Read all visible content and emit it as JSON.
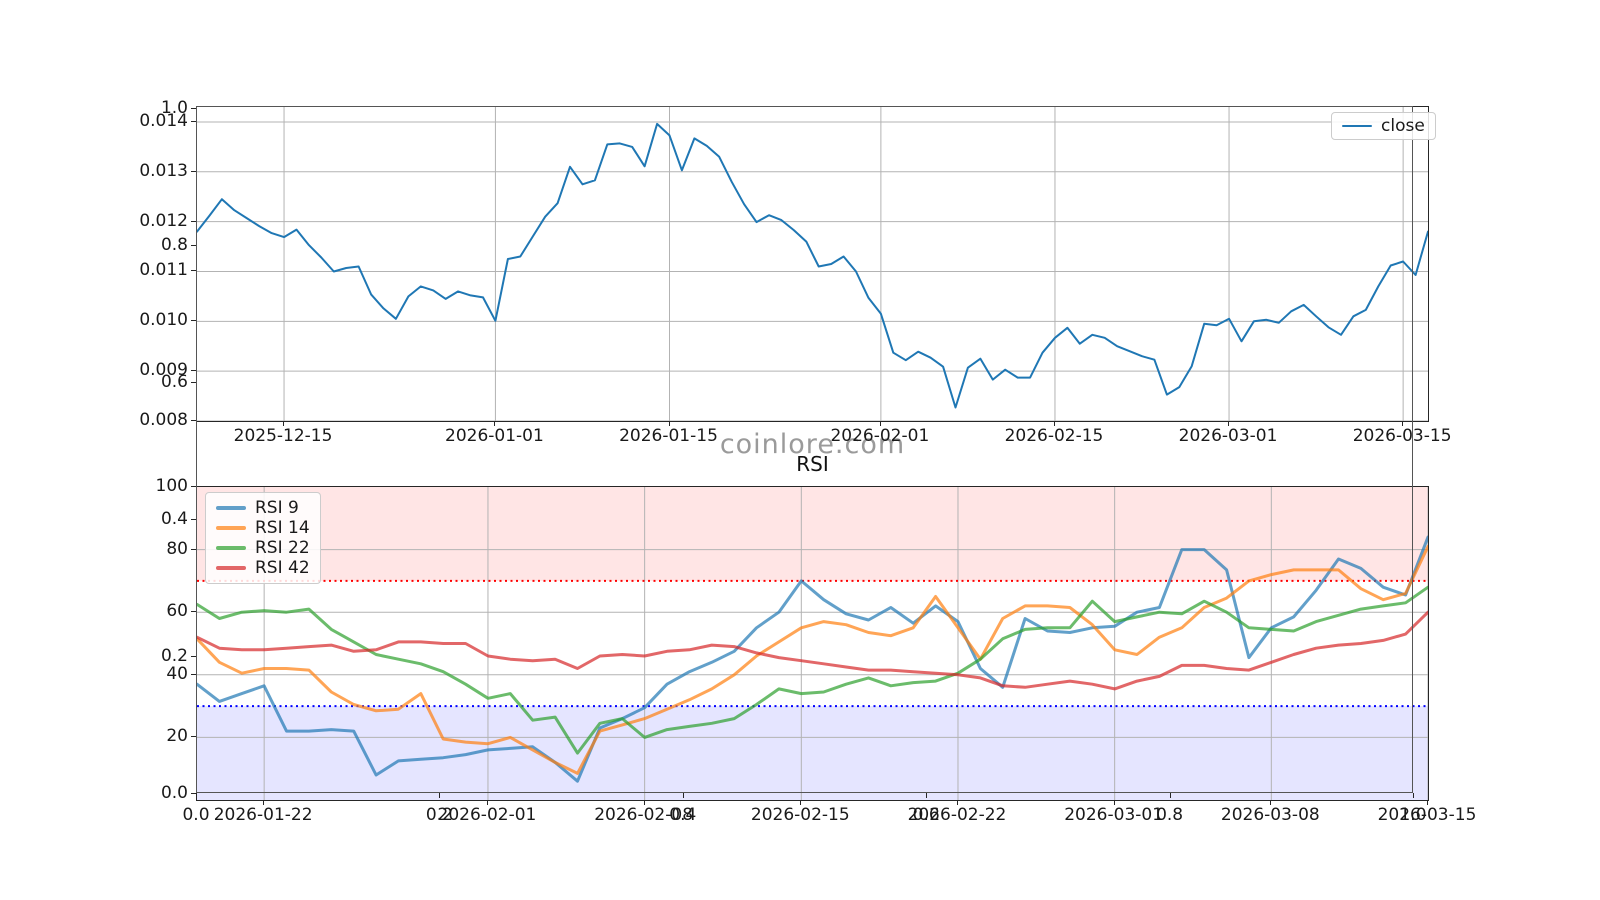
{
  "watermark": "coinlore.com",
  "price_panel": {
    "legend": [
      {
        "label": "close",
        "color": "#1f77b4"
      }
    ],
    "y_tick_labels": [
      "0.014",
      "0.013",
      "0.012",
      "0.011",
      "0.010",
      "0.009",
      "0.008"
    ],
    "y_tick_values": [
      0.014,
      0.013,
      0.012,
      0.011,
      0.01,
      0.009,
      0.008
    ],
    "x_ticks": [
      {
        "label": "2025-12-15",
        "index": 7
      },
      {
        "label": "2026-01-01",
        "index": 24
      },
      {
        "label": "2026-01-15",
        "index": 38
      },
      {
        "label": "2026-02-01",
        "index": 55
      },
      {
        "label": "2026-02-15",
        "index": 69
      },
      {
        "label": "2026-03-01",
        "index": 83
      },
      {
        "label": "2026-03-15",
        "index": 97
      }
    ]
  },
  "rsi_panel": {
    "title": "RSI",
    "legend": [
      {
        "label": "RSI 9",
        "color": "#1f77b4"
      },
      {
        "label": "RSI 14",
        "color": "#ff7f0e"
      },
      {
        "label": "RSI 22",
        "color": "#2ca02c"
      },
      {
        "label": "RSI 42",
        "color": "#d62728"
      }
    ],
    "y_tick_labels": [
      "100",
      "80",
      "60",
      "40",
      "20"
    ],
    "y_tick_values": [
      100,
      80,
      60,
      40,
      20
    ],
    "x_ticks": [
      {
        "label": "2026-01-22",
        "index": 3
      },
      {
        "label": "2026-02-01",
        "index": 13
      },
      {
        "label": "2026-02-08",
        "index": 20
      },
      {
        "label": "2026-02-15",
        "index": 27
      },
      {
        "label": "2026-02-22",
        "index": 34
      },
      {
        "label": "2026-03-01",
        "index": 41
      },
      {
        "label": "2026-03-08",
        "index": 48
      },
      {
        "label": "2026-03-15",
        "index": 55
      }
    ],
    "overbought_level": 70,
    "oversold_level": 30,
    "band_colors": {
      "overbought": "rgba(255,0,0,0.10)",
      "oversold": "rgba(0,0,255,0.10)"
    },
    "threshold_colors": {
      "overbought": "#ff0000",
      "oversold": "#0000ff"
    }
  },
  "overlay_axis": {
    "left_labels": [
      "1.0",
      "0.8",
      "0.6",
      "0.4",
      "0.2",
      "0.0"
    ],
    "bottom_labels": [
      "0.0",
      "0.2",
      "0.4",
      "0.6",
      "0.8",
      "1.0"
    ]
  },
  "chart_data": [
    {
      "type": "line",
      "title": "",
      "legend_position": "upper right",
      "xlabel": "",
      "ylabel": "",
      "ylim": [
        0.008,
        0.0143
      ],
      "grid": true,
      "start_date": "2025-12-08",
      "frequency": "daily",
      "series": [
        {
          "name": "close",
          "color": "#1f77b4",
          "values": [
            0.0118,
            0.01212,
            0.01245,
            0.01223,
            0.01207,
            0.01191,
            0.01177,
            0.01169,
            0.01184,
            0.01153,
            0.01128,
            0.011,
            0.01107,
            0.0111,
            0.01054,
            0.01026,
            0.01005,
            0.0105,
            0.0107,
            0.01062,
            0.01045,
            0.0106,
            0.01052,
            0.01048,
            0.01001,
            0.01125,
            0.0113,
            0.0117,
            0.0121,
            0.01237,
            0.0131,
            0.01275,
            0.01283,
            0.01355,
            0.01357,
            0.0135,
            0.01311,
            0.01396,
            0.01373,
            0.01303,
            0.01367,
            0.01352,
            0.0133,
            0.0128,
            0.01235,
            0.01199,
            0.01213,
            0.01203,
            0.01183,
            0.0116,
            0.0111,
            0.01115,
            0.0113,
            0.011,
            0.01047,
            0.01015,
            0.00937,
            0.00922,
            0.00939,
            0.00927,
            0.00909,
            0.00827,
            0.00907,
            0.00925,
            0.00883,
            0.00903,
            0.00887,
            0.00887,
            0.00937,
            0.00967,
            0.00987,
            0.00955,
            0.00973,
            0.00967,
            0.0095,
            0.0094,
            0.0093,
            0.00923,
            0.00853,
            0.00868,
            0.0091,
            0.00995,
            0.00992,
            0.01005,
            0.0096,
            0.01,
            0.01003,
            0.00997,
            0.0102,
            0.01033,
            0.0101,
            0.00988,
            0.00973,
            0.0101,
            0.01023,
            0.0107,
            0.01112,
            0.0112,
            0.01093,
            0.0118
          ]
        }
      ]
    },
    {
      "type": "line",
      "title": "RSI",
      "legend_position": "upper left",
      "ylim": [
        0,
        100
      ],
      "grid": true,
      "start_date": "2026-01-19",
      "frequency": "daily",
      "overbought_level": 70,
      "oversold_level": 30,
      "series": [
        {
          "name": "RSI 9",
          "color": "#1f77b4",
          "values": [
            37,
            31.5,
            34,
            36.5,
            22,
            22,
            22.5,
            22,
            8,
            12.5,
            13,
            13.5,
            14.5,
            16,
            16.5,
            17,
            12,
            6,
            23,
            26,
            29.5,
            37,
            41,
            44,
            47.5,
            55,
            60,
            70,
            64,
            59.5,
            57.5,
            61.5,
            56.5,
            62,
            57,
            42,
            36,
            58,
            54,
            53.5,
            55,
            55.5,
            60,
            61.5,
            80,
            80,
            73.5,
            45.5,
            55,
            58.5,
            67,
            77,
            74,
            68,
            65.5,
            84
          ]
        },
        {
          "name": "RSI 14",
          "color": "#ff7f0e",
          "values": [
            51.5,
            44,
            40.5,
            42,
            42,
            41.5,
            34.5,
            30.5,
            28.5,
            29,
            34,
            19.5,
            18.5,
            18,
            20,
            16,
            12,
            8.5,
            22,
            24,
            26,
            29,
            32,
            35.5,
            40,
            46,
            50.5,
            55,
            57,
            56,
            53.5,
            52.5,
            55,
            65,
            55,
            45,
            58,
            62,
            62,
            61.5,
            56,
            48,
            46.5,
            52,
            55,
            61.5,
            64.5,
            70,
            72,
            73.5,
            73.5,
            73.5,
            67.5,
            64,
            66,
            81
          ]
        },
        {
          "name": "RSI 22",
          "color": "#2ca02c",
          "values": [
            62.5,
            58,
            60,
            60.5,
            60,
            61,
            54.5,
            50.5,
            46.5,
            45,
            43.5,
            41,
            37,
            32.5,
            34,
            25.5,
            26.5,
            15,
            24.5,
            26,
            20,
            22.5,
            23.5,
            24.5,
            26,
            30.5,
            35.5,
            34,
            34.5,
            37,
            39,
            36.5,
            37.5,
            38,
            40.5,
            45,
            51.5,
            54.5,
            55,
            55,
            63.5,
            57,
            58.5,
            60,
            59.5,
            63.5,
            60,
            55,
            54.5,
            54,
            57,
            59,
            61,
            62,
            63,
            68
          ]
        },
        {
          "name": "RSI 42",
          "color": "#d62728",
          "values": [
            52,
            48.5,
            48,
            48,
            48.5,
            49,
            49.5,
            47.5,
            48,
            50.5,
            50.5,
            50,
            50,
            46,
            45,
            44.5,
            45,
            42,
            46,
            46.5,
            46,
            47.5,
            48,
            49.5,
            49,
            47,
            45.5,
            44.5,
            43.5,
            42.5,
            41.5,
            41.5,
            41,
            40.5,
            40,
            39,
            36.5,
            36,
            37,
            38,
            37,
            35.5,
            38,
            39.5,
            43,
            43,
            42,
            41.5,
            44,
            46.5,
            48.5,
            49.5,
            50,
            51,
            53,
            60
          ]
        }
      ]
    }
  ]
}
